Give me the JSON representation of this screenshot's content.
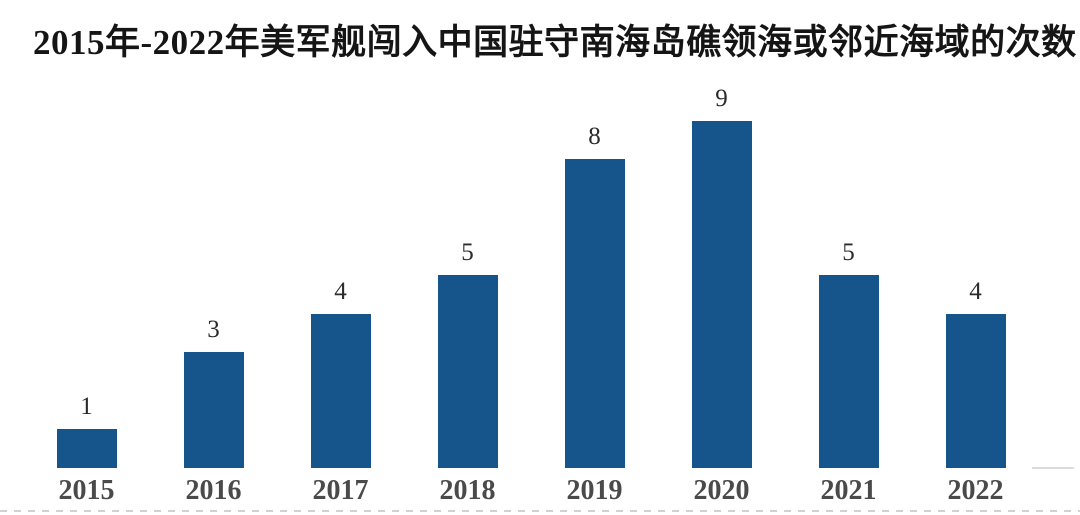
{
  "page": {
    "background": "#ffffff"
  },
  "chart_data": {
    "type": "bar",
    "title": "2015年-2022年美军舰闯入中国驻守南海岛礁领海或邻近海域的次数",
    "categories": [
      "2015",
      "2016",
      "2017",
      "2018",
      "2019",
      "2020",
      "2021",
      "2022"
    ],
    "values": [
      1,
      3,
      4,
      5,
      8,
      9,
      5,
      4
    ],
    "xlabel": "",
    "ylabel": "",
    "ylim": [
      0,
      9
    ],
    "grid": false,
    "legend": false,
    "data_labels": true,
    "bar_color": "#16558c",
    "title_color": "#151515",
    "value_label_color": "#2b2b2b",
    "tick_label_color": "#4a4a4a"
  }
}
